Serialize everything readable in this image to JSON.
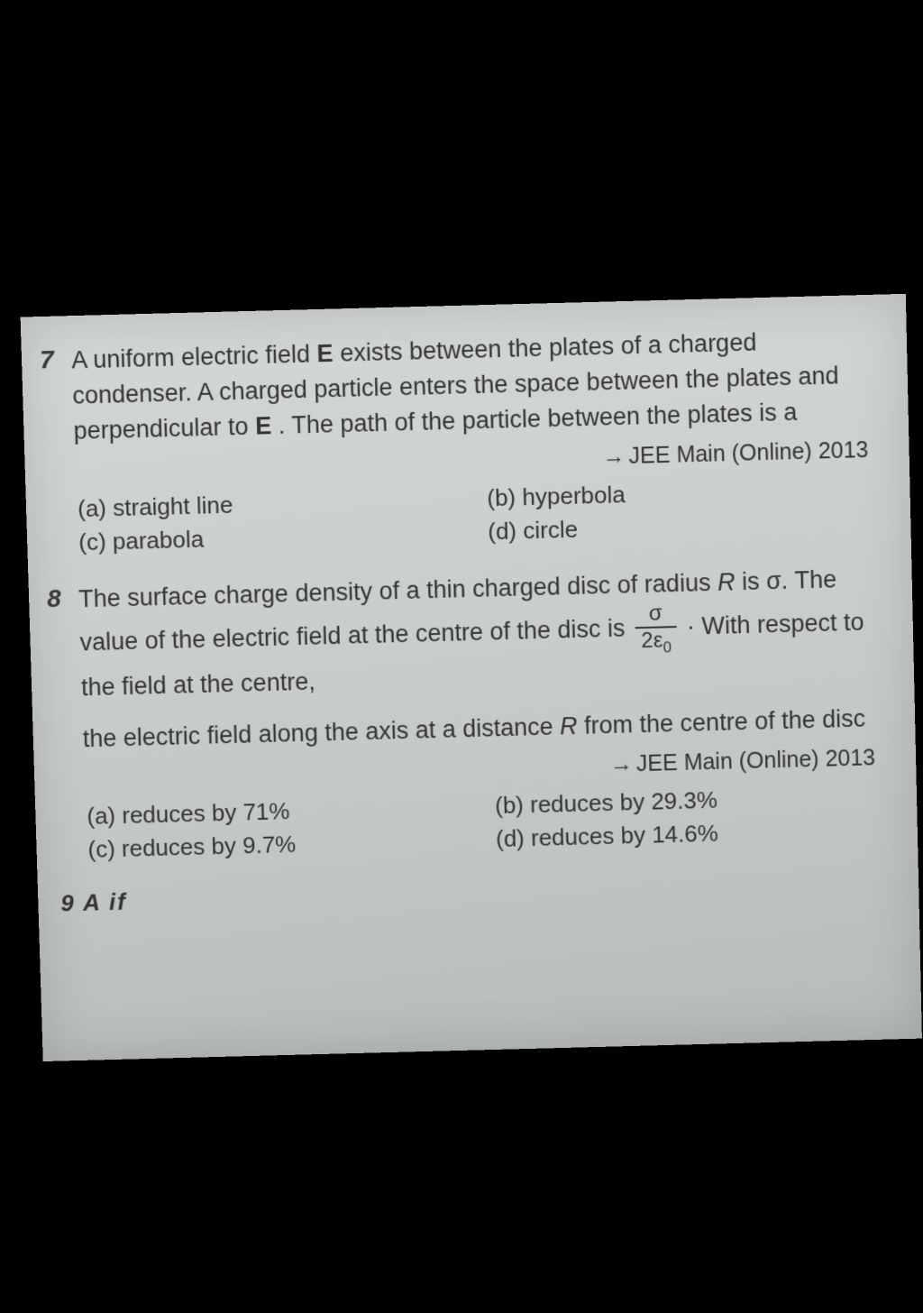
{
  "page": {
    "background_color": "#000000",
    "paper_tint": "#cdd1cc",
    "text_color": "#2a2a2a"
  },
  "q7": {
    "number": "7",
    "text_parts": {
      "p1": "A uniform electric field ",
      "E1": "E",
      "p2": " exists between the plates of a charged condenser. A charged particle enters the space between the plates and perpendicular to ",
      "E2": "E",
      "p3": " . The path of the particle between the plates is a"
    },
    "source": "JEE Main (Online) 2013",
    "options": {
      "a": "(a) straight line",
      "b": "(b) hyperbola",
      "c": "(c) parabola",
      "d": "(d) circle"
    }
  },
  "q8": {
    "number": "8",
    "text_parts": {
      "p1": "The surface charge density of a thin charged disc of radius ",
      "R": "R",
      "p2": " is σ. The value of the electric field at the centre of the disc is ",
      "frac_num": "σ",
      "frac_den_a": "2ε",
      "frac_den_sub": "0",
      "p3": " · With respect to the field at the centre,",
      "p4": "the electric field along the axis at a distance ",
      "R2": "R",
      "p5": " from the centre of the disc"
    },
    "source": "JEE Main (Online) 2013",
    "options": {
      "a": "(a)  reduces by 71%",
      "b": "(b)  reduces by 29.3%",
      "c": "(c)  reduces by 9.7%",
      "d": "(d)  reduces by 14.6%"
    }
  },
  "cutoff": {
    "text": "9  A      if"
  }
}
